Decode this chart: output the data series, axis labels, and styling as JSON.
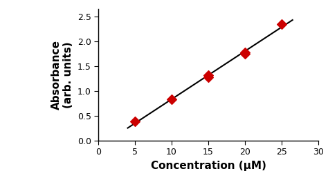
{
  "x_data": [
    5,
    10,
    15,
    15,
    20,
    20,
    25
  ],
  "y_data": [
    0.38,
    0.83,
    1.28,
    1.32,
    1.75,
    1.78,
    2.35
  ],
  "marker_color": "#CC0000",
  "marker_style": "D",
  "marker_size": 7,
  "line_color": "#000000",
  "line_width": 1.5,
  "line_x_start": 4.0,
  "line_x_end": 26.5,
  "xlabel": "Concentration (μM)",
  "ylabel": "Absorbance\n(arb. units)",
  "xlim": [
    0,
    30
  ],
  "ylim": [
    0,
    2.65
  ],
  "xticks": [
    0,
    5,
    10,
    15,
    20,
    25,
    30
  ],
  "yticks": [
    0,
    0.5,
    1.0,
    1.5,
    2.0,
    2.5
  ],
  "xlabel_fontsize": 11,
  "ylabel_fontsize": 11,
  "tick_fontsize": 9,
  "background_color": "#ffffff"
}
